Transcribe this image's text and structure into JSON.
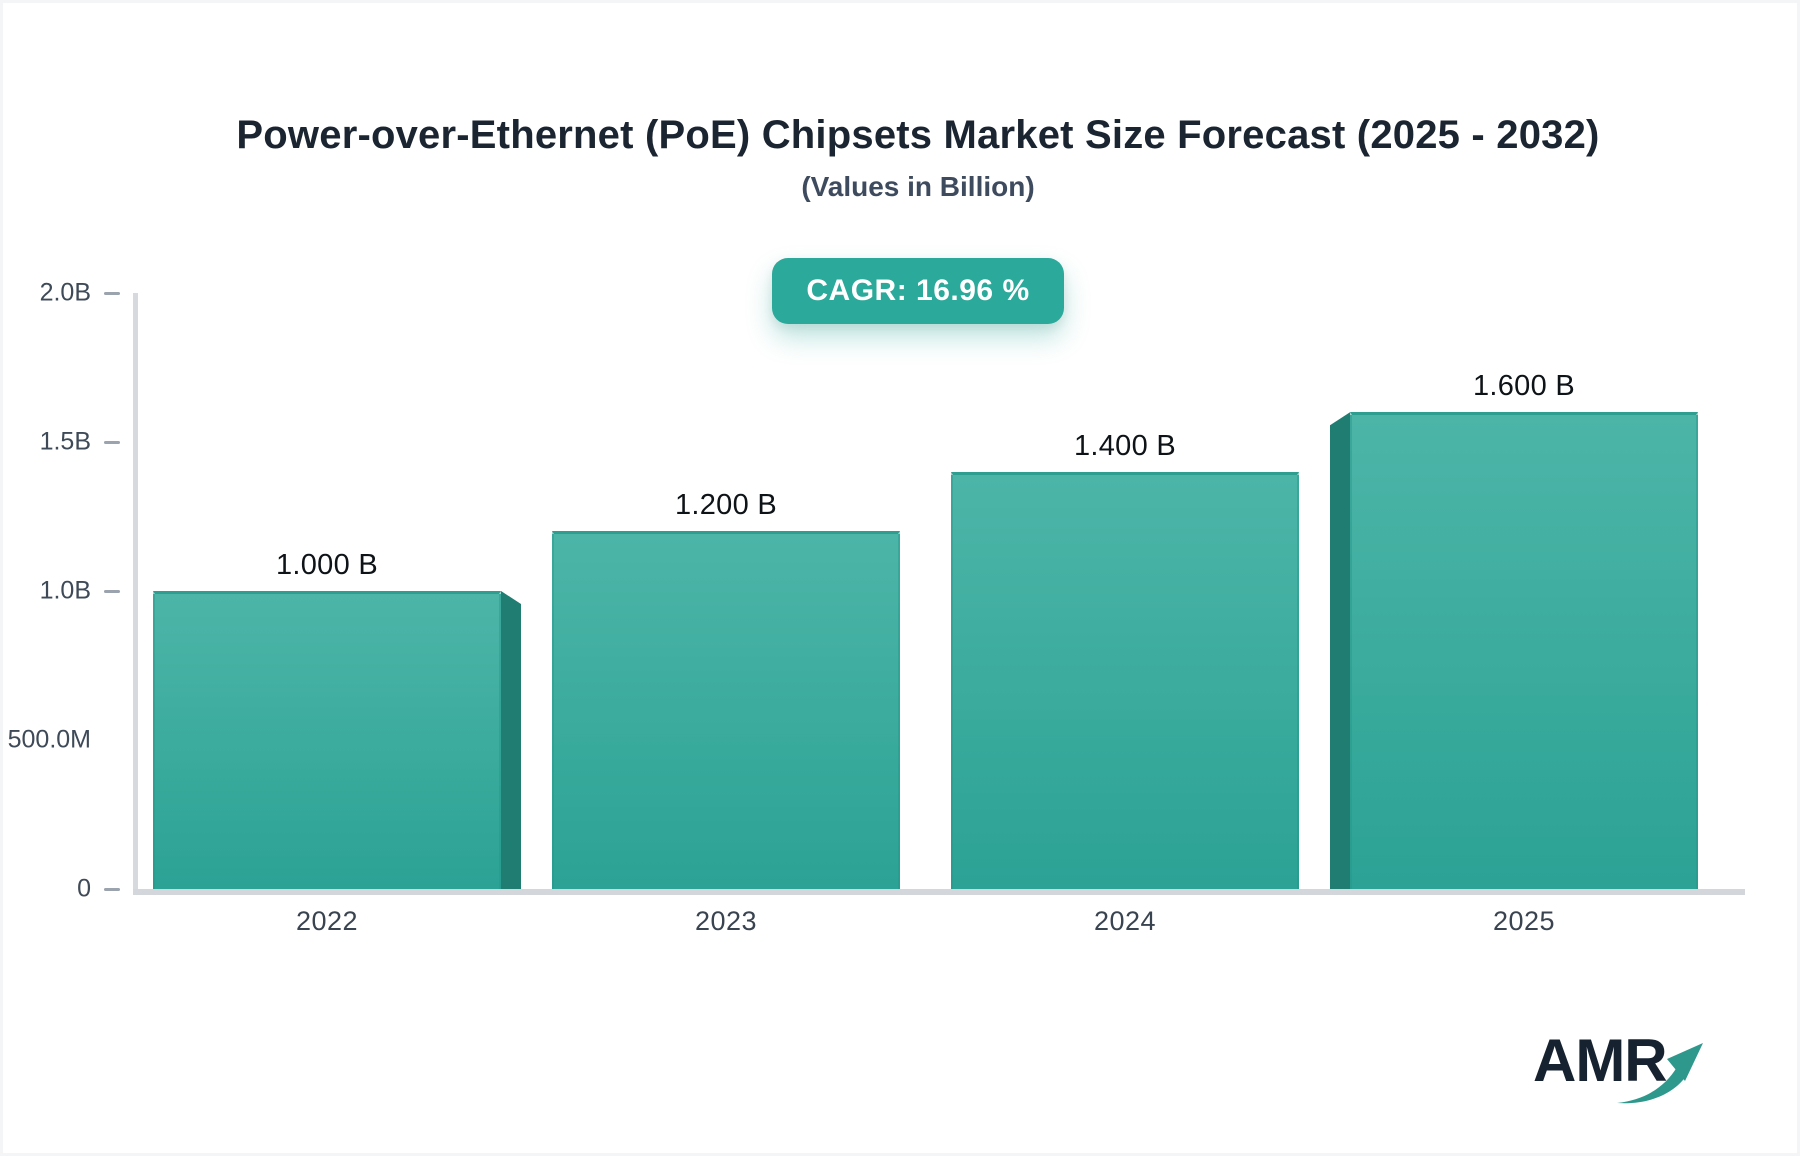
{
  "page": {
    "frame_bg": "#f3f5f7",
    "card_bg": "#ffffff"
  },
  "header": {
    "title": "Power-over-Ethernet (PoE) Chipsets Market Size Forecast (2025 - 2032)",
    "subtitle": "(Values in Billion)"
  },
  "cagr_badge": {
    "label": "CAGR: 16.96 %",
    "bg": "#2ba99a",
    "text_color": "#ffffff"
  },
  "chart_data": {
    "type": "bar",
    "title": "Power-over-Ethernet (PoE) Chipsets Market Size Forecast (2025 - 2032)",
    "subtitle": "(Values in Billion)",
    "cagr_percent": 16.96,
    "categories": [
      "2022",
      "2023",
      "2024",
      "2025"
    ],
    "values": [
      1.0,
      1.2,
      1.4,
      1.6
    ],
    "value_labels": [
      "1.000 B",
      "1.200 B",
      "1.400 B",
      "1.600 B"
    ],
    "ylim": [
      0,
      2.0
    ],
    "yticks": [
      {
        "label": "2.0B",
        "value": 2.0,
        "dash": true
      },
      {
        "label": "1.5B",
        "value": 1.5,
        "dash": true
      },
      {
        "label": "1.0B",
        "value": 1.0,
        "dash": true
      },
      {
        "label": "500.0M",
        "value": 0.5,
        "dash": false
      },
      {
        "label": "0",
        "value": 0.0,
        "dash": true
      }
    ],
    "xlabel": "",
    "ylabel": "",
    "grid": false,
    "legend": false,
    "bar_face_top_color": "#4cb5a8",
    "bar_face_bottom_color": "#2ba295",
    "bar_side_color": "#1f7d72"
  },
  "logo": {
    "text": "AMR",
    "text_color": "#16222f",
    "arrow_color": "#2e988d"
  }
}
